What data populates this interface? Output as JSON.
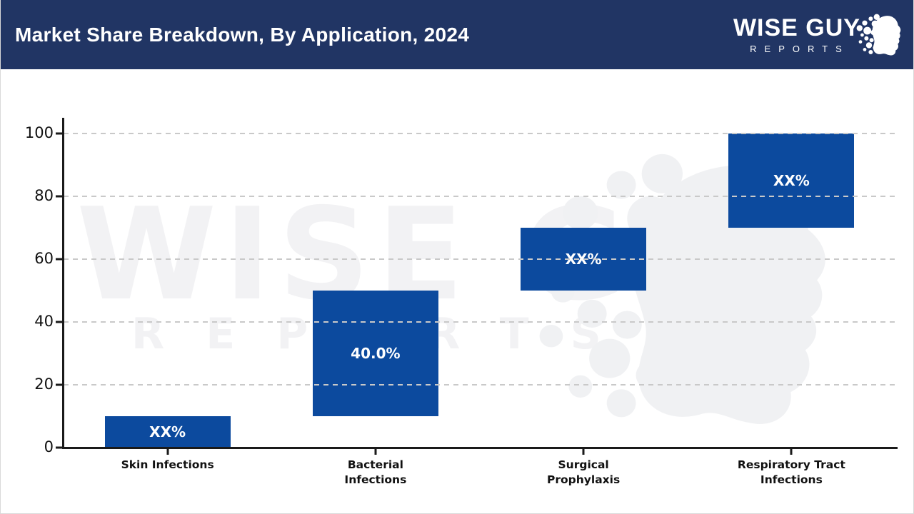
{
  "header": {
    "title": "Market Share Breakdown, By Application, 2024",
    "bg_color": "#213564",
    "logo": {
      "line1": "WISE GUY",
      "line2": "REPORTS"
    }
  },
  "watermark": {
    "line1": "WISE GU",
    "line2": "REPORTS"
  },
  "chart_data": {
    "type": "bar",
    "variant": "floating-waterfall",
    "title": "Market Share Breakdown, By Application, 2024",
    "categories": [
      "Skin Infections",
      "Bacterial\nInfections",
      "Surgical\nProphylaxis",
      "Respiratory Tract\nInfections"
    ],
    "bars": [
      {
        "start": 0,
        "end": 10,
        "label": "XX%"
      },
      {
        "start": 10,
        "end": 50,
        "label": "40.0%"
      },
      {
        "start": 50,
        "end": 70,
        "label": "XX%"
      },
      {
        "start": 70,
        "end": 100,
        "label": "XX%"
      }
    ],
    "yticks": [
      0,
      20,
      40,
      60,
      80,
      100
    ],
    "ylim": [
      0,
      105
    ],
    "xlabel": "",
    "ylabel": "",
    "legend": null,
    "grid": {
      "horizontal": true,
      "style": "dashed",
      "color": "#c9c9c9"
    },
    "bar_color": "#0c4a9e",
    "axis_color": "#1a1a1a",
    "value_label_color": "#ffffff"
  }
}
